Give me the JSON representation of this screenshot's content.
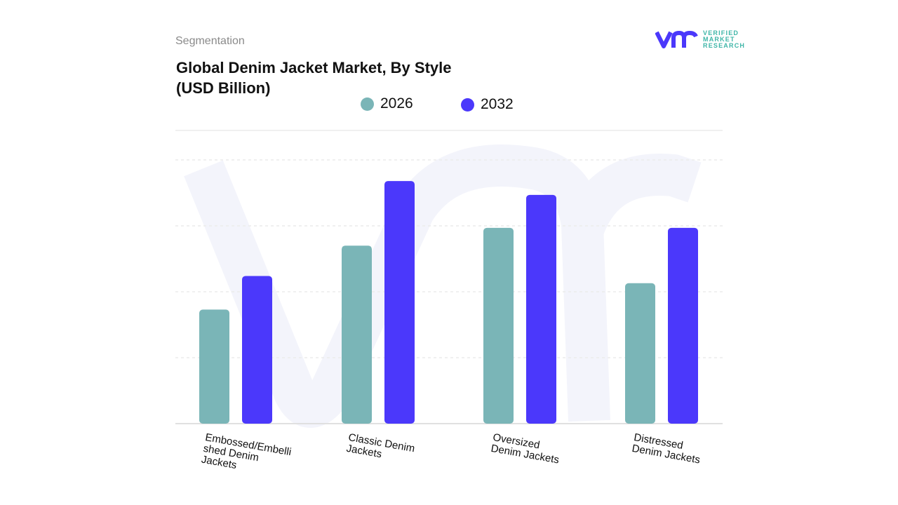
{
  "header": {
    "segment_label": "Segmentation",
    "title_line1": "Global Denim Jacket Market, By Style",
    "title_line2": "(USD Billion)"
  },
  "logo": {
    "line1": "VERIFIED",
    "line2": "MARKET",
    "line3": "RESEARCH"
  },
  "colors": {
    "s2026": "#7ab5b7",
    "s2032": "#4b38fb",
    "grid": "#e6e6e6",
    "watermark": "#f3f4fb"
  },
  "chart_data": {
    "type": "bar",
    "title": "Global Denim Jacket Market, By Style (USD Billion)",
    "categories": [
      "Embossed/Embellished Denim Jackets",
      "Classic Denim Jackets",
      "Oversized Denim Jackets",
      "Distressed Denim Jackets"
    ],
    "category_labels": [
      "Embossed/Embelli\nshed Denim\nJackets",
      "Classic Denim\nJackets",
      "Oversized\nDenim Jackets",
      "Distressed\nDenim Jackets"
    ],
    "series": [
      {
        "name": "2026",
        "values": [
          1.73,
          2.7,
          2.97,
          2.13
        ]
      },
      {
        "name": "2032",
        "values": [
          2.24,
          3.68,
          3.47,
          2.97
        ]
      }
    ],
    "ylim": [
      0,
      4
    ],
    "grid": true,
    "legend": "top-center"
  }
}
